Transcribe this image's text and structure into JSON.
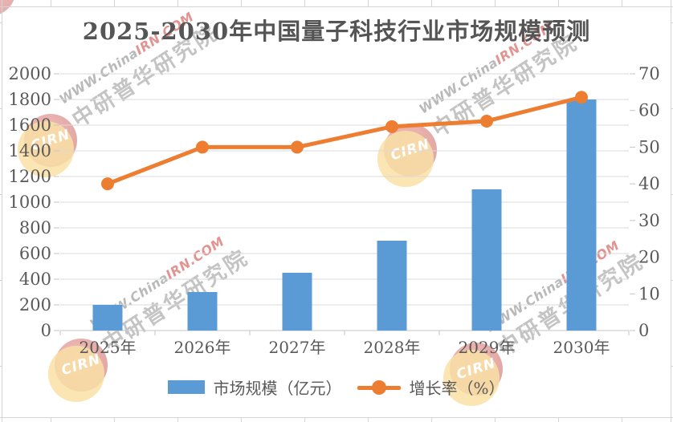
{
  "title": "2025-2030年中国量子科技行业市场规模预测",
  "chart_data": {
    "type": "combo-bar-line",
    "categories": [
      "2025年",
      "2026年",
      "2027年",
      "2028年",
      "2029年",
      "2030年"
    ],
    "series": [
      {
        "name": "市场规模（亿元）",
        "type": "bar",
        "axis": "left",
        "color": "#5B9BD5",
        "values": [
          200,
          300,
          450,
          700,
          1100,
          1800
        ]
      },
      {
        "name": "增长率（%）",
        "type": "line",
        "axis": "right",
        "color": "#ED7D31",
        "values": [
          40,
          50,
          50,
          55.6,
          57.1,
          63.6
        ]
      }
    ],
    "left_axis": {
      "min": 0,
      "max": 2000,
      "step": 200,
      "tick_labels": [
        "0",
        "200",
        "400",
        "600",
        "800",
        "1000",
        "1200",
        "1400",
        "1600",
        "1800",
        "2000"
      ]
    },
    "right_axis": {
      "min": 0,
      "max": 70,
      "step": 10,
      "tick_labels": [
        "0",
        "10",
        "20",
        "30",
        "40",
        "50",
        "60",
        "70"
      ]
    },
    "grid": true,
    "legend_position": "bottom"
  },
  "legend": {
    "bar_label": "市场规模（亿元）",
    "line_label": "增长率（%）"
  },
  "watermark": {
    "logo_text": "CIRN",
    "url_prefix": "WWW.China",
    "url_suffix": "IRN.COM",
    "cn_text": "中研普华研究院"
  },
  "colors": {
    "bar": "#5B9BD5",
    "line": "#ED7D31",
    "grid": "#D9D9D9",
    "axis_line": "#C6C6C6",
    "axis_text": "#595959",
    "title_text": "#555555"
  }
}
